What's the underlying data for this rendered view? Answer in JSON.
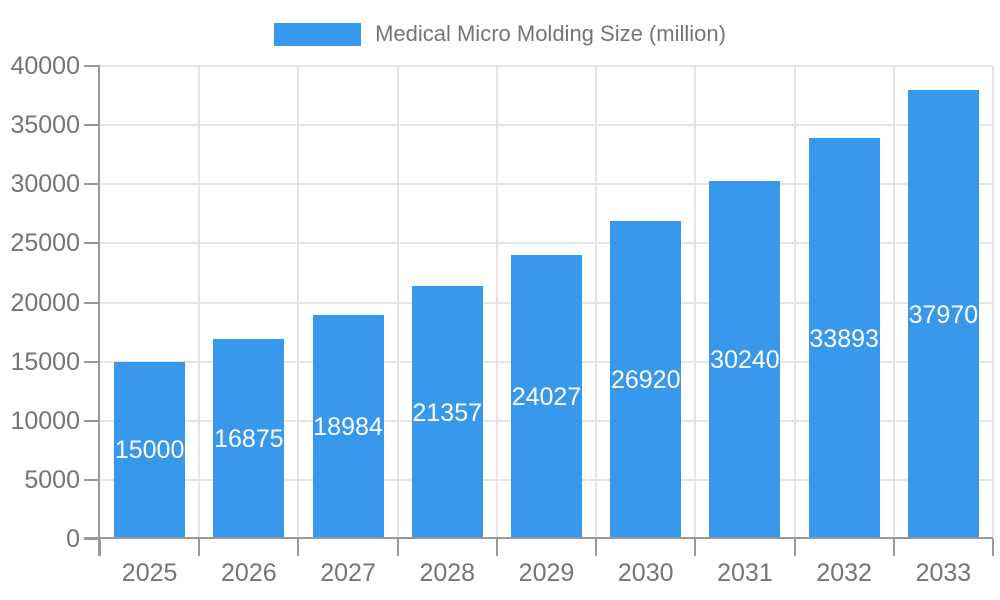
{
  "chart_data": {
    "type": "bar",
    "title": "Medical Micro Molding Size (million)",
    "legend_position": "top",
    "categories": [
      "2025",
      "2026",
      "2027",
      "2028",
      "2029",
      "2030",
      "2031",
      "2032",
      "2033"
    ],
    "values": [
      15000,
      16875,
      18984,
      21357,
      24027,
      26920,
      30240,
      33893,
      37970
    ],
    "bar_value_labels": [
      "15000",
      "16875",
      "18984",
      "21357",
      "24027",
      "26920",
      "30240",
      "33893",
      "37970"
    ],
    "xlabel": "",
    "ylabel": "",
    "ylim": [
      0,
      40000
    ],
    "ytick_step": 5000,
    "ytick_labels": [
      "0",
      "5000",
      "10000",
      "15000",
      "20000",
      "25000",
      "30000",
      "35000",
      "40000"
    ],
    "grid": "on",
    "colors": {
      "bar": "#3898EC",
      "bar_label_text": "#ffffff",
      "axis": "#999999",
      "grid": "#e5e5e5",
      "tick_text": "#757575",
      "title_text": "#757575",
      "background": "#ffffff"
    }
  }
}
